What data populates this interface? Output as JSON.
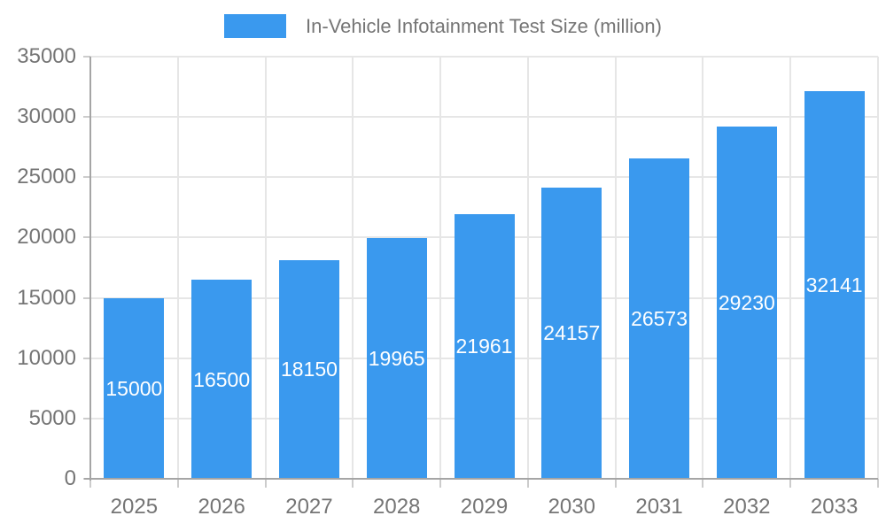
{
  "legend": {
    "label": "In-Vehicle Infotainment Test Size (million)"
  },
  "chart_data": {
    "type": "bar",
    "title": "In-Vehicle Infotainment Test Size (million)",
    "categories": [
      "2025",
      "2026",
      "2027",
      "2028",
      "2029",
      "2030",
      "2031",
      "2032",
      "2033"
    ],
    "values": [
      15000,
      16500,
      18150,
      19965,
      21961,
      24157,
      26573,
      29230,
      32141
    ],
    "xlabel": "",
    "ylabel": "",
    "ylim": [
      0,
      35000
    ],
    "yticks": [
      0,
      5000,
      10000,
      15000,
      20000,
      25000,
      30000,
      35000
    ],
    "grid": true,
    "legend_position": "top",
    "bar_labels_inside": true,
    "colors": {
      "bar": "#3A99EE",
      "bar_label": "#FFFFFF",
      "axis_text": "#757575",
      "grid": "#E6E6E6",
      "axis_line": "#A5A5A5",
      "tick": "#CCCCCC"
    }
  }
}
